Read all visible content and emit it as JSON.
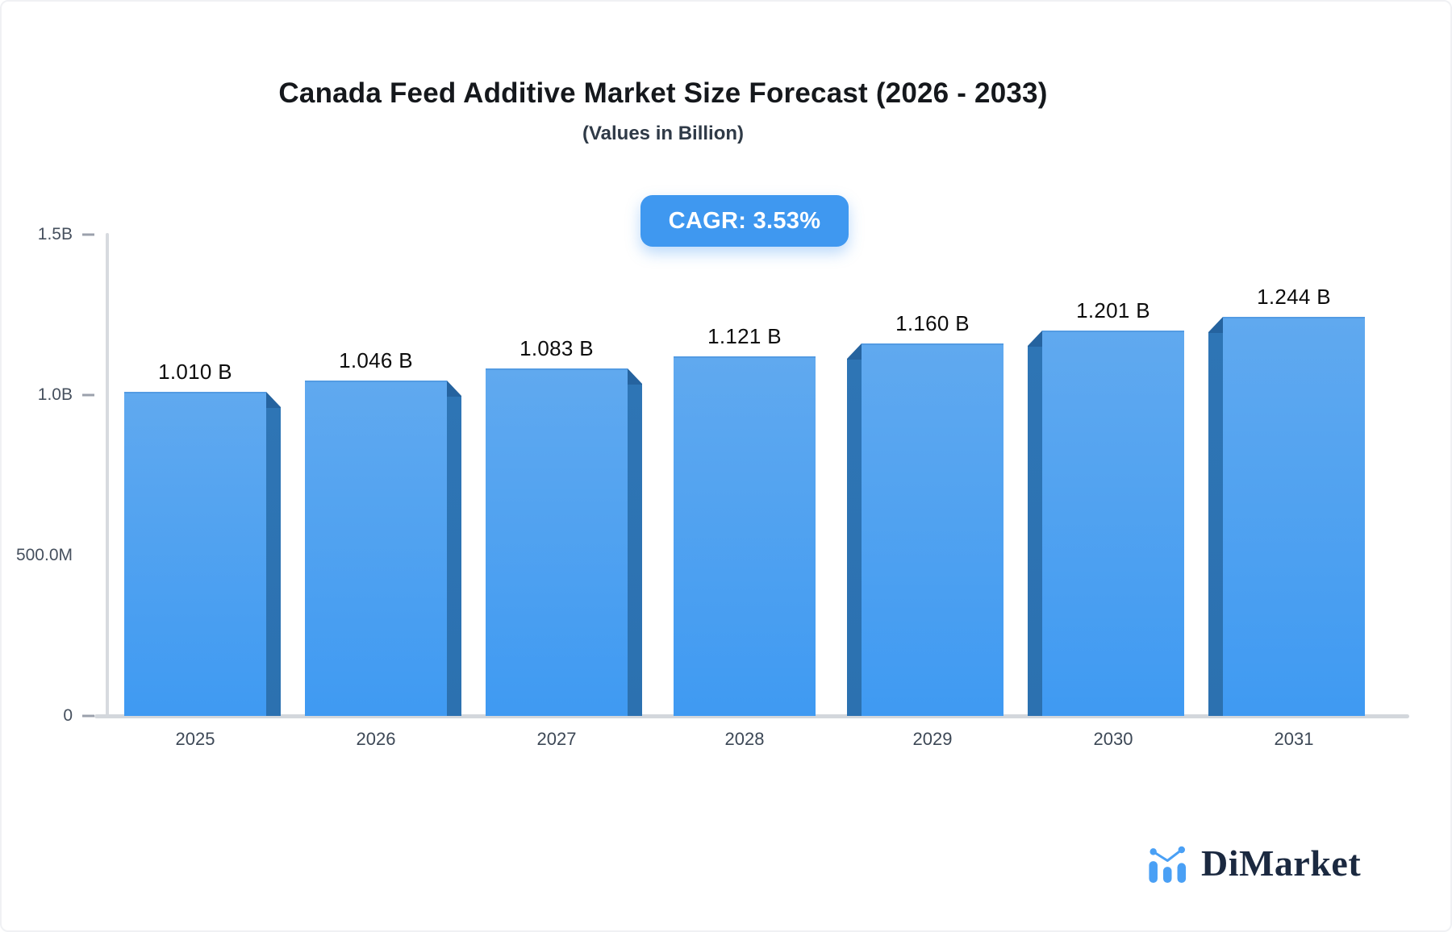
{
  "header": {
    "title": "Canada Feed Additive Market Size Forecast (2026 - 2033)",
    "subtitle": "(Values in Billion)",
    "cagr_badge": "CAGR: 3.53%"
  },
  "chart_data": {
    "type": "bar",
    "title": "Canada Feed Additive Market Size Forecast (2026 - 2033)",
    "subtitle": "(Values in Billion)",
    "unit": "Billion USD",
    "categories": [
      "2025",
      "2026",
      "2027",
      "2028",
      "2029",
      "2030",
      "2031"
    ],
    "values": [
      1.01,
      1.046,
      1.083,
      1.121,
      1.16,
      1.201,
      1.244
    ],
    "value_labels": [
      "1.010 B",
      "1.046 B",
      "1.083 B",
      "1.121 B",
      "1.160 B",
      "1.201 B",
      "1.244 B"
    ],
    "ylim": [
      0,
      1.5
    ],
    "y_ticks": [
      {
        "label": "1.5B",
        "value": 1.5,
        "dash": true
      },
      {
        "label": "1.0B",
        "value": 1.0,
        "dash": true
      },
      {
        "label": "500.0M",
        "value": 0.5,
        "dash": false
      },
      {
        "label": "0",
        "value": 0.0,
        "dash": true
      }
    ],
    "grid": false,
    "legend": "none",
    "annotation": "CAGR: 3.53%",
    "colors": {
      "bar_top": "#60a9ef",
      "bar_bottom": "#3f9af2",
      "bar_side": "#2e75b5",
      "bar_side_bevel": "#25639f",
      "badge_bg": "#3f98f0",
      "axis_line": "#d5d8dd",
      "tick_text": "#46505e",
      "value_text": "#0d0d0d"
    }
  },
  "footer": {
    "logo_text": "DiMarket",
    "logo_icon": "bar-chart-logo-icon",
    "logo_icon_color": "#4aa0f5",
    "logo_text_color": "#1b2940"
  }
}
